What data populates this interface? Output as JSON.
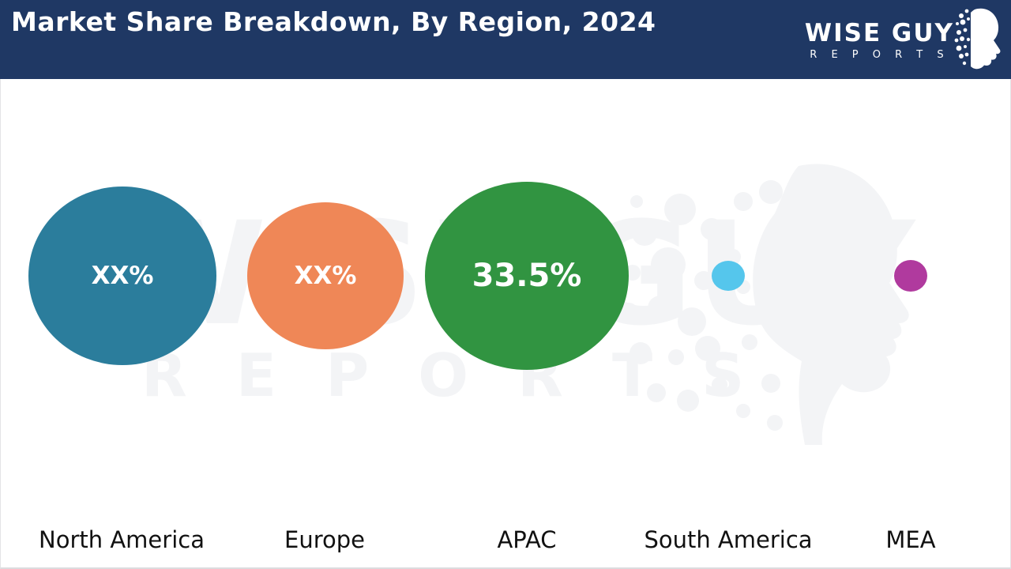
{
  "header": {
    "title": "Market Share Breakdown, By Region, 2024",
    "background_color": "#1f3864",
    "logo": {
      "line1": "WISE GUY",
      "line2": "R E P O R T S"
    }
  },
  "chart_data": {
    "type": "bubble",
    "title": "Market Share Breakdown, By Region, 2024",
    "year": "2024",
    "unit": "%",
    "categories": [
      "North America",
      "Europe",
      "APAC",
      "South America",
      "MEA"
    ],
    "series": [
      {
        "region": "North America",
        "value_label": "XX%",
        "value": null,
        "color": "#2b7d9c",
        "bubble_radius_px": 119
      },
      {
        "region": "Europe",
        "value_label": "XX%",
        "value": null,
        "color": "#ef8757",
        "bubble_radius_px": 99
      },
      {
        "region": "APAC",
        "value_label": "33.5%",
        "value": 33.5,
        "color": "#319441",
        "bubble_radius_px": 129
      },
      {
        "region": "South America",
        "value_label": "",
        "value": null,
        "color": "#55c6ec",
        "bubble_radius_px": 21
      },
      {
        "region": "MEA",
        "value_label": "",
        "value": null,
        "color": "#b03a9e",
        "bubble_radius_px": 21
      }
    ],
    "legend_position": "category labels below bubbles",
    "notes": "bubble size encodes market share; masked values shown as XX%"
  },
  "watermark": {
    "line1": "WISE GUY",
    "line2": "R E P O R T S",
    "color": "#f3f4f6"
  }
}
